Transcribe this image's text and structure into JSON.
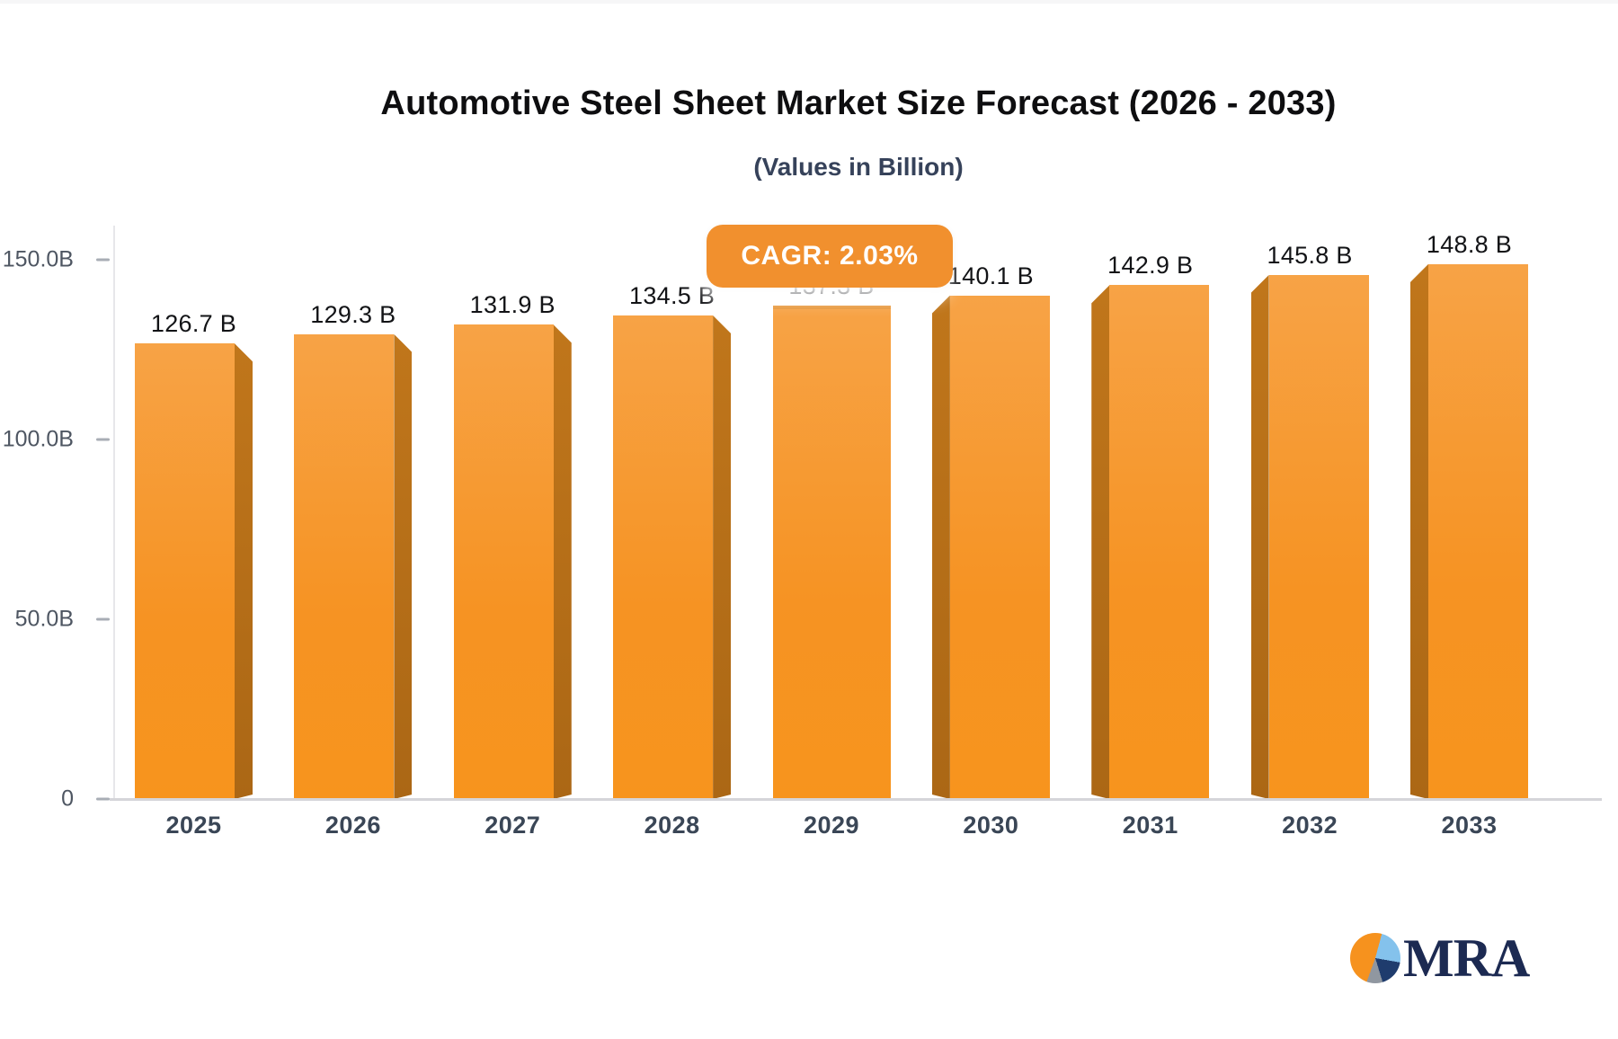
{
  "header": {
    "title": "Automotive Steel Sheet Market Size Forecast (2026 - 2033)",
    "subtitle": "(Values in Billion)"
  },
  "badge": {
    "label": "CAGR: 2.03%"
  },
  "logo": {
    "text": "MRA"
  },
  "chart_data": {
    "type": "bar",
    "title": "Automotive Steel Sheet Market Size Forecast (2026 - 2033)",
    "subtitle": "(Values in Billion)",
    "categories": [
      "2025",
      "2026",
      "2027",
      "2028",
      "2029",
      "2030",
      "2031",
      "2032",
      "2033"
    ],
    "values": [
      126.7,
      129.3,
      131.9,
      134.5,
      137.3,
      140.1,
      142.9,
      145.8,
      148.8
    ],
    "bar_labels": [
      "126.7 B",
      "129.3 B",
      "131.9 B",
      "134.5 B",
      "137.3 B",
      "140.1 B",
      "142.9 B",
      "145.8 B",
      "148.8 B"
    ],
    "y_ticks": [
      {
        "value": 150,
        "label": "150.0B"
      },
      {
        "value": 100,
        "label": "100.0B"
      },
      {
        "value": 50,
        "label": "50.0B"
      },
      {
        "value": 0,
        "label": "0"
      }
    ],
    "ylim": [
      0,
      150
    ],
    "xlabel": "",
    "ylabel": "",
    "grid": false,
    "legend": false,
    "annotation": "CAGR: 2.03%",
    "colors": {
      "bar_front": "#f6921e",
      "bar_front_top": "#f7a346",
      "bar_side": "#b06c16",
      "badge_bg": "#f1902e",
      "title_text": "#0e0e10",
      "subtitle_text": "#36425a",
      "axis_text": "#4e5662",
      "year_text": "#3a4656",
      "baseline": "#d5d5d9",
      "logo_navy": "#1c2a52",
      "logo_blue": "#84c2ec",
      "logo_gray": "#9097a0",
      "logo_orange": "#f6921e"
    }
  }
}
